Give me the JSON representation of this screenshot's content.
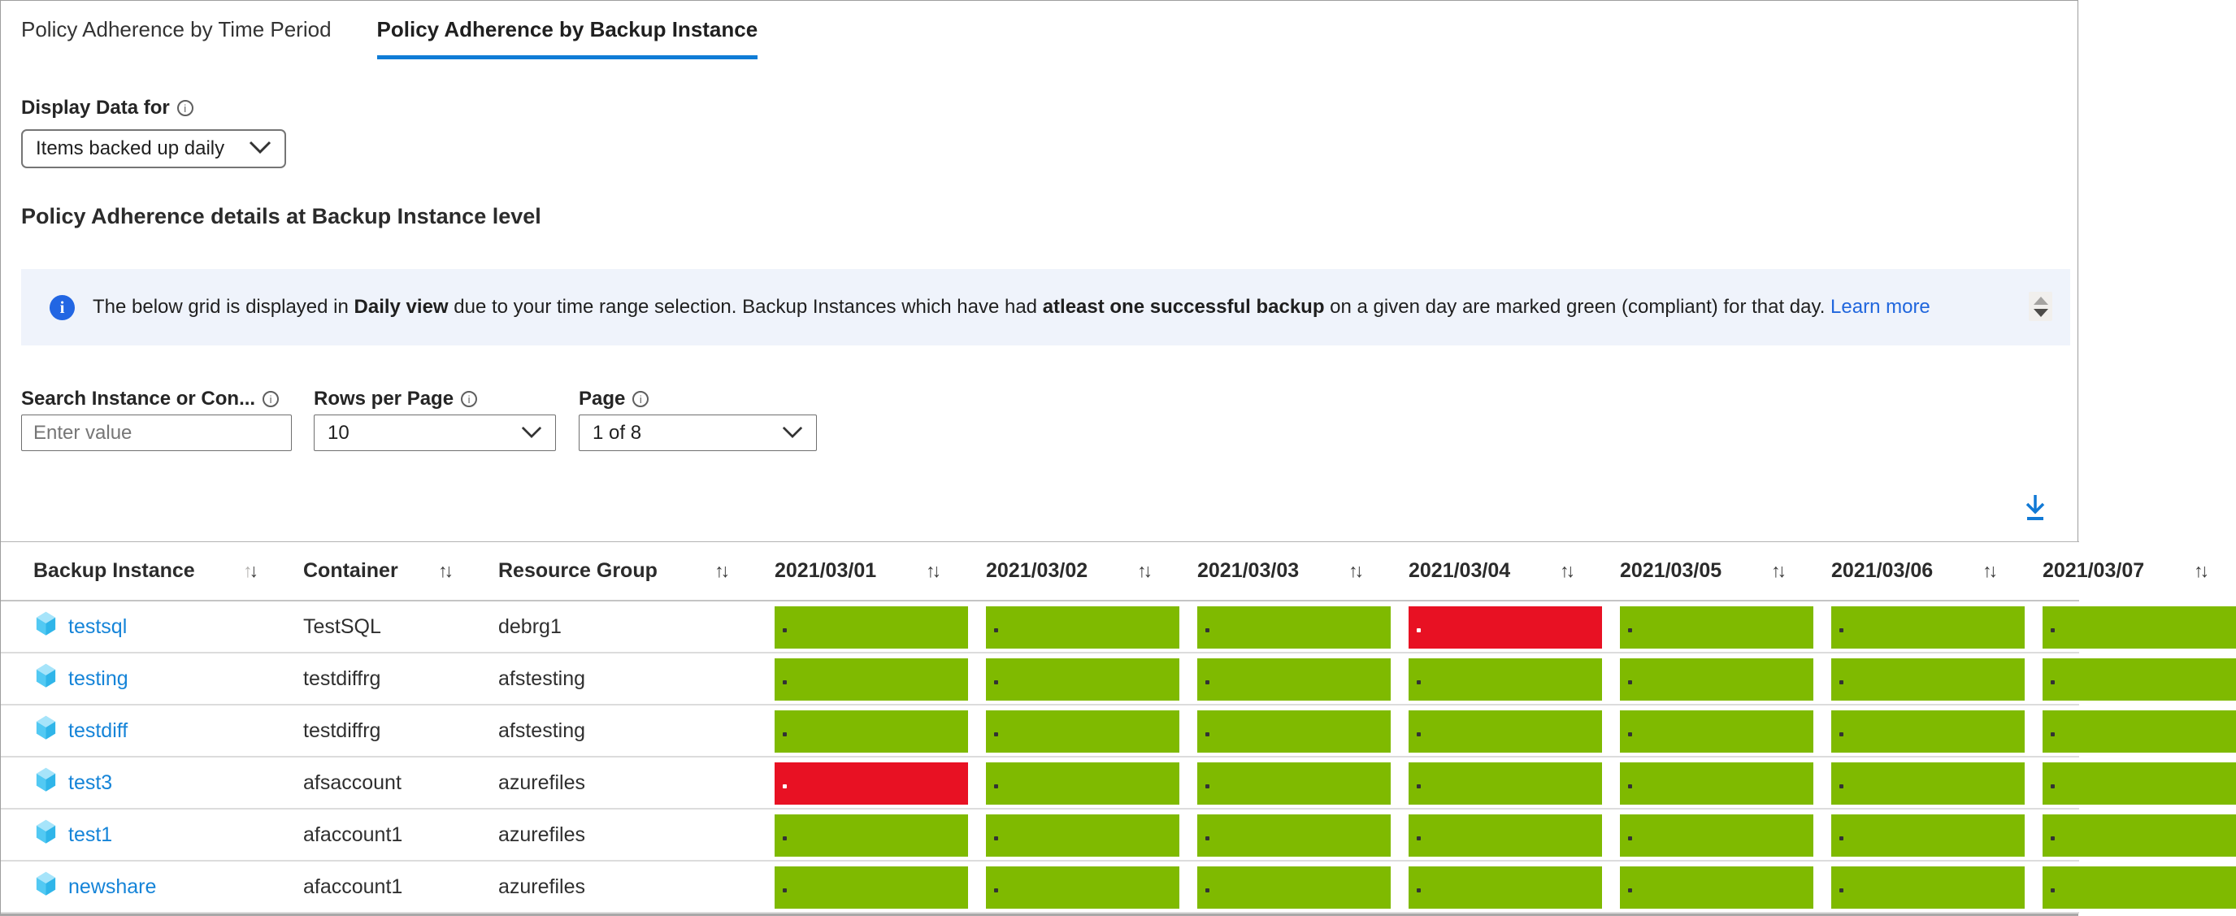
{
  "tabs": {
    "time_period": "Policy Adherence by Time Period",
    "backup_instance": "Policy Adherence by Backup Instance"
  },
  "display_data": {
    "label": "Display Data for",
    "value": "Items backed up daily"
  },
  "section_title": "Policy Adherence details at Backup Instance level",
  "banner": {
    "segments": [
      {
        "text": "The below grid is displayed in ",
        "bold": false
      },
      {
        "text": "Daily view",
        "bold": true
      },
      {
        "text": " due to your time range selection. Backup Instances which have had ",
        "bold": false
      },
      {
        "text": "atleast one successful backup",
        "bold": true
      },
      {
        "text": " on a given day are marked green (compliant) for that day. ",
        "bold": false
      }
    ],
    "link": "Learn more"
  },
  "controls": {
    "search": {
      "label": "Search Instance or Con...",
      "placeholder": "Enter value",
      "value": ""
    },
    "rows_per_page": {
      "label": "Rows per Page",
      "value": "10"
    },
    "page": {
      "label": "Page",
      "value": "1 of 8"
    }
  },
  "icons": {
    "info": "i",
    "chevron_down": "⌄",
    "download": "↓",
    "sort_up": "↑",
    "sort_down": "↓",
    "status_dot": "."
  },
  "table": {
    "columns": [
      {
        "label": "Backup Instance",
        "muted_up": true
      },
      {
        "label": "Container",
        "muted_up": false
      },
      {
        "label": "Resource Group",
        "muted_up": false
      }
    ],
    "date_columns": [
      "2021/03/01",
      "2021/03/02",
      "2021/03/03",
      "2021/03/04",
      "2021/03/05",
      "2021/03/06",
      "2021/03/07"
    ],
    "rows": [
      {
        "name": "testsql",
        "container": "TestSQL",
        "resource_group": "debrg1",
        "statuses": [
          "compliant",
          "compliant",
          "compliant",
          "non_compliant",
          "compliant",
          "compliant",
          "compliant"
        ]
      },
      {
        "name": "testing",
        "container": "testdiffrg",
        "resource_group": "afstesting",
        "statuses": [
          "compliant",
          "compliant",
          "compliant",
          "compliant",
          "compliant",
          "compliant",
          "compliant"
        ]
      },
      {
        "name": "testdiff",
        "container": "testdiffrg",
        "resource_group": "afstesting",
        "statuses": [
          "compliant",
          "compliant",
          "compliant",
          "compliant",
          "compliant",
          "compliant",
          "compliant"
        ]
      },
      {
        "name": "test3",
        "container": "afsaccount",
        "resource_group": "azurefiles",
        "statuses": [
          "non_compliant",
          "compliant",
          "compliant",
          "compliant",
          "compliant",
          "compliant",
          "compliant"
        ]
      },
      {
        "name": "test1",
        "container": "afaccount1",
        "resource_group": "azurefiles",
        "statuses": [
          "compliant",
          "compliant",
          "compliant",
          "compliant",
          "compliant",
          "compliant",
          "compliant"
        ]
      },
      {
        "name": "newshare",
        "container": "afaccount1",
        "resource_group": "azurefiles",
        "statuses": [
          "compliant",
          "compliant",
          "compliant",
          "compliant",
          "compliant",
          "compliant",
          "compliant"
        ]
      }
    ]
  },
  "colors": {
    "compliant": "#7fba00",
    "non_compliant": "#e81123",
    "tab_underline": "#0f7cd6",
    "link": "#2066dd",
    "instance_link": "#1584d8",
    "info_icon_bg": "#2266e3",
    "banner_bg": "#eff3fb"
  }
}
